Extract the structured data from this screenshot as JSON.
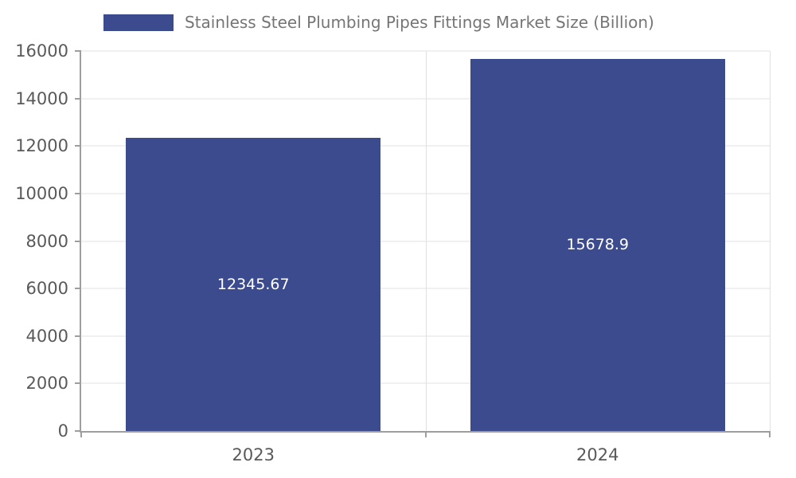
{
  "chart_data": {
    "type": "bar",
    "title": "Stainless Steel Plumbing Pipes Fittings Market Size (Billion)",
    "categories": [
      "2023",
      "2024"
    ],
    "values": [
      12345.67,
      15678.9
    ],
    "xlabel": "",
    "ylabel": "",
    "ylim": [
      0,
      16000
    ],
    "ytick_step": 2000,
    "grid": true,
    "legend_position": "top-left",
    "legend_entries": [
      "Stainless Steel Plumbing Pipes Fittings Market Size (Billion)"
    ],
    "colors": {
      "bar": "#3b4b8e",
      "value_label": "#ffffff",
      "axis": "#9e9e9e",
      "gridline": "#e0e0e0",
      "tick_text": "#595959",
      "title_text": "#757575",
      "background": "#ffffff"
    }
  }
}
